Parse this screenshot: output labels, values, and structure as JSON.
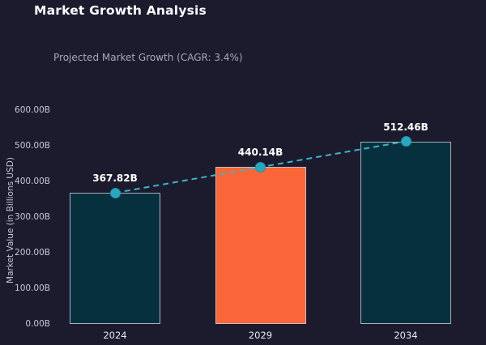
{
  "title": "Market Growth Analysis",
  "subtitle": "Projected Market Growth (CAGR: 3.4%)",
  "chart_data": {
    "type": "bar",
    "categories": [
      "2024",
      "2029",
      "2034"
    ],
    "values": [
      367.82,
      440.14,
      512.46
    ],
    "value_labels": [
      "367.82B",
      "440.14B",
      "512.46B"
    ],
    "title": "Market Growth Analysis",
    "subtitle": "Projected Market Growth (CAGR: 3.4%)",
    "xlabel": "",
    "ylabel": "Market Value (in Billions USD)",
    "ylim": [
      0,
      600
    ],
    "yticks": [
      0,
      100,
      200,
      300,
      400,
      500,
      600
    ],
    "ytick_labels": [
      "0.00B",
      "100.00B",
      "200.00B",
      "300.00B",
      "400.00B",
      "500.00B",
      "600.00B"
    ],
    "grid": false,
    "legend": "none",
    "bar_colors": [
      "#06303e",
      "#fa6637",
      "#06303e"
    ],
    "trend_line": {
      "style": "dashed",
      "color": "#3cb4c9",
      "marker_color": "#28a9c0"
    },
    "background": "#1c1b2e"
  }
}
